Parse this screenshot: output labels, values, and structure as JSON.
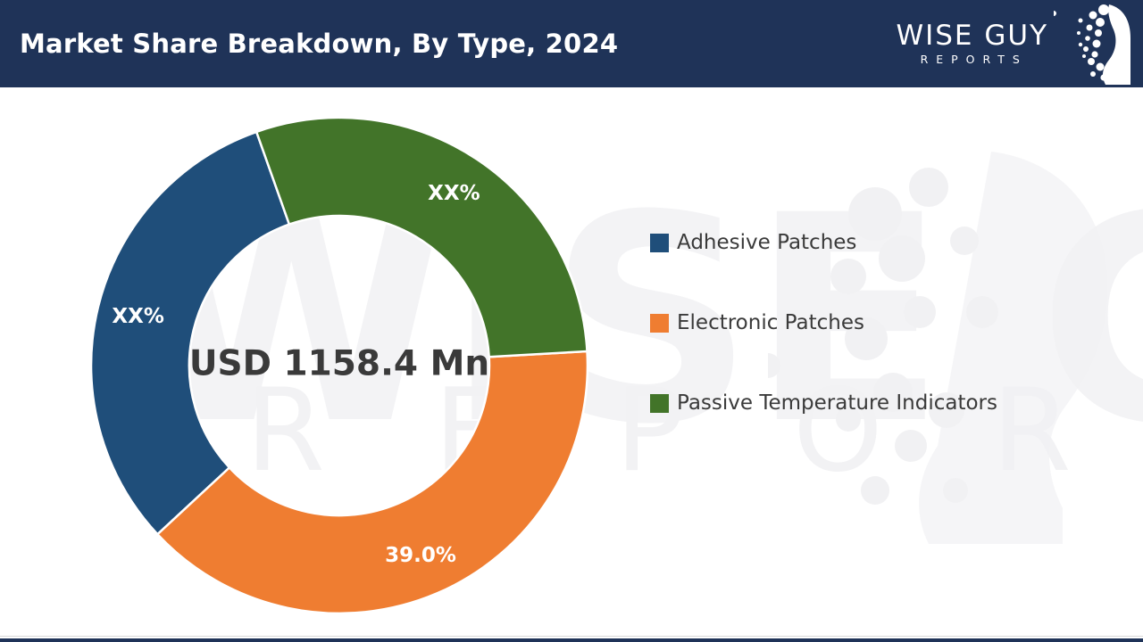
{
  "header": {
    "title": "Market Share Breakdown, By Type, 2024",
    "logo": {
      "line1": "WISE GUY",
      "line2": "REPORTS"
    }
  },
  "watermark": {
    "line1": "WISE GUY",
    "line2": "REPORTS"
  },
  "chart_data": {
    "type": "pie",
    "subtype": "donut",
    "title": "Market Share Breakdown, By Type, 2024",
    "center_label": "USD 1158.4 Mn",
    "start_angle_deg": 109.5,
    "direction": "counterclockwise",
    "legend_position": "right",
    "segments": [
      {
        "label": "Adhesive Patches",
        "display_label": "XX%",
        "value_pct_est": 31.5,
        "color": "#1F4E7A"
      },
      {
        "label": "Electronic Patches",
        "display_label": "39.0%",
        "value_pct_est": 39.0,
        "color": "#EF7D31"
      },
      {
        "label": "Passive Temperature Indicators",
        "display_label": "XX%",
        "value_pct_est": 29.5,
        "color": "#427429"
      }
    ]
  },
  "colors": {
    "header_bg": "#1F3358",
    "text_dark": "#3A3A3A",
    "watermark": "#F3F3F5"
  }
}
